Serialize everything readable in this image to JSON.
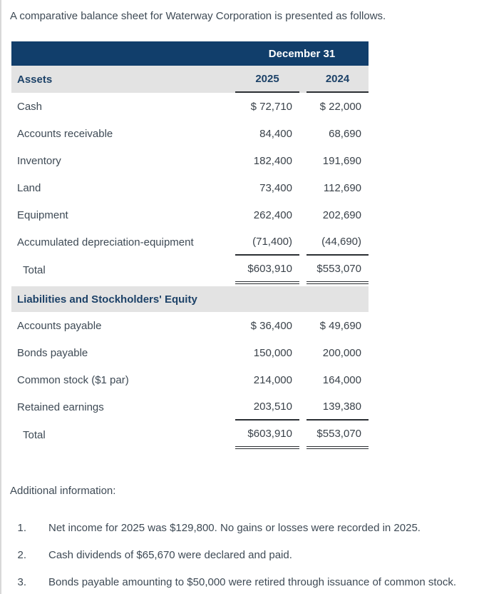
{
  "colors": {
    "navy": "#113e6b",
    "band": "#e3e3e3",
    "heading_navy": "#1d4268",
    "text": "#3e4a55",
    "number": "#3a424a",
    "line": "#2b2f33",
    "page_border": "#d8d8d8"
  },
  "page": {
    "intro": "A comparative balance sheet for Waterway Corporation is presented as follows.",
    "additional_info_label": "Additional information:",
    "notes": [
      {
        "num": "1.",
        "text": "Net income for 2025 was $129,800. No gains or losses were recorded in 2025."
      },
      {
        "num": "2.",
        "text": "Cash dividends of $65,670 were declared and paid."
      },
      {
        "num": "3.",
        "text": "Bonds payable amounting to $50,000 were retired through issuance of common stock."
      }
    ]
  },
  "balance_sheet": {
    "header": "December 31",
    "years": [
      "2025",
      "2024"
    ],
    "sections": [
      {
        "title": "Assets",
        "rows": [
          {
            "label": "Cash",
            "v2025": "$ 72,710",
            "v2024": "$ 22,000"
          },
          {
            "label": "Accounts receivable",
            "v2025": "84,400",
            "v2024": "68,690"
          },
          {
            "label": "Inventory",
            "v2025": "182,400",
            "v2024": "191,690"
          },
          {
            "label": "Land",
            "v2025": "73,400",
            "v2024": "112,690"
          },
          {
            "label": "Equipment",
            "v2025": "262,400",
            "v2024": "202,690"
          },
          {
            "label": "Accumulated depreciation-equipment",
            "v2025": "(71,400)",
            "v2024": "(44,690)"
          }
        ],
        "total": {
          "label": "Total",
          "v2025": "$603,910",
          "v2024": "$553,070"
        }
      },
      {
        "title": "Liabilities and Stockholders' Equity",
        "rows": [
          {
            "label": "Accounts payable",
            "v2025": "$ 36,400",
            "v2024": "$ 49,690"
          },
          {
            "label": "Bonds payable",
            "v2025": "150,000",
            "v2024": "200,000"
          },
          {
            "label": "Common stock ($1 par)",
            "v2025": "214,000",
            "v2024": "164,000"
          },
          {
            "label": "Retained earnings",
            "v2025": "203,510",
            "v2024": "139,380"
          }
        ],
        "total": {
          "label": "Total",
          "v2025": "$603,910",
          "v2024": "$553,070"
        }
      }
    ]
  }
}
